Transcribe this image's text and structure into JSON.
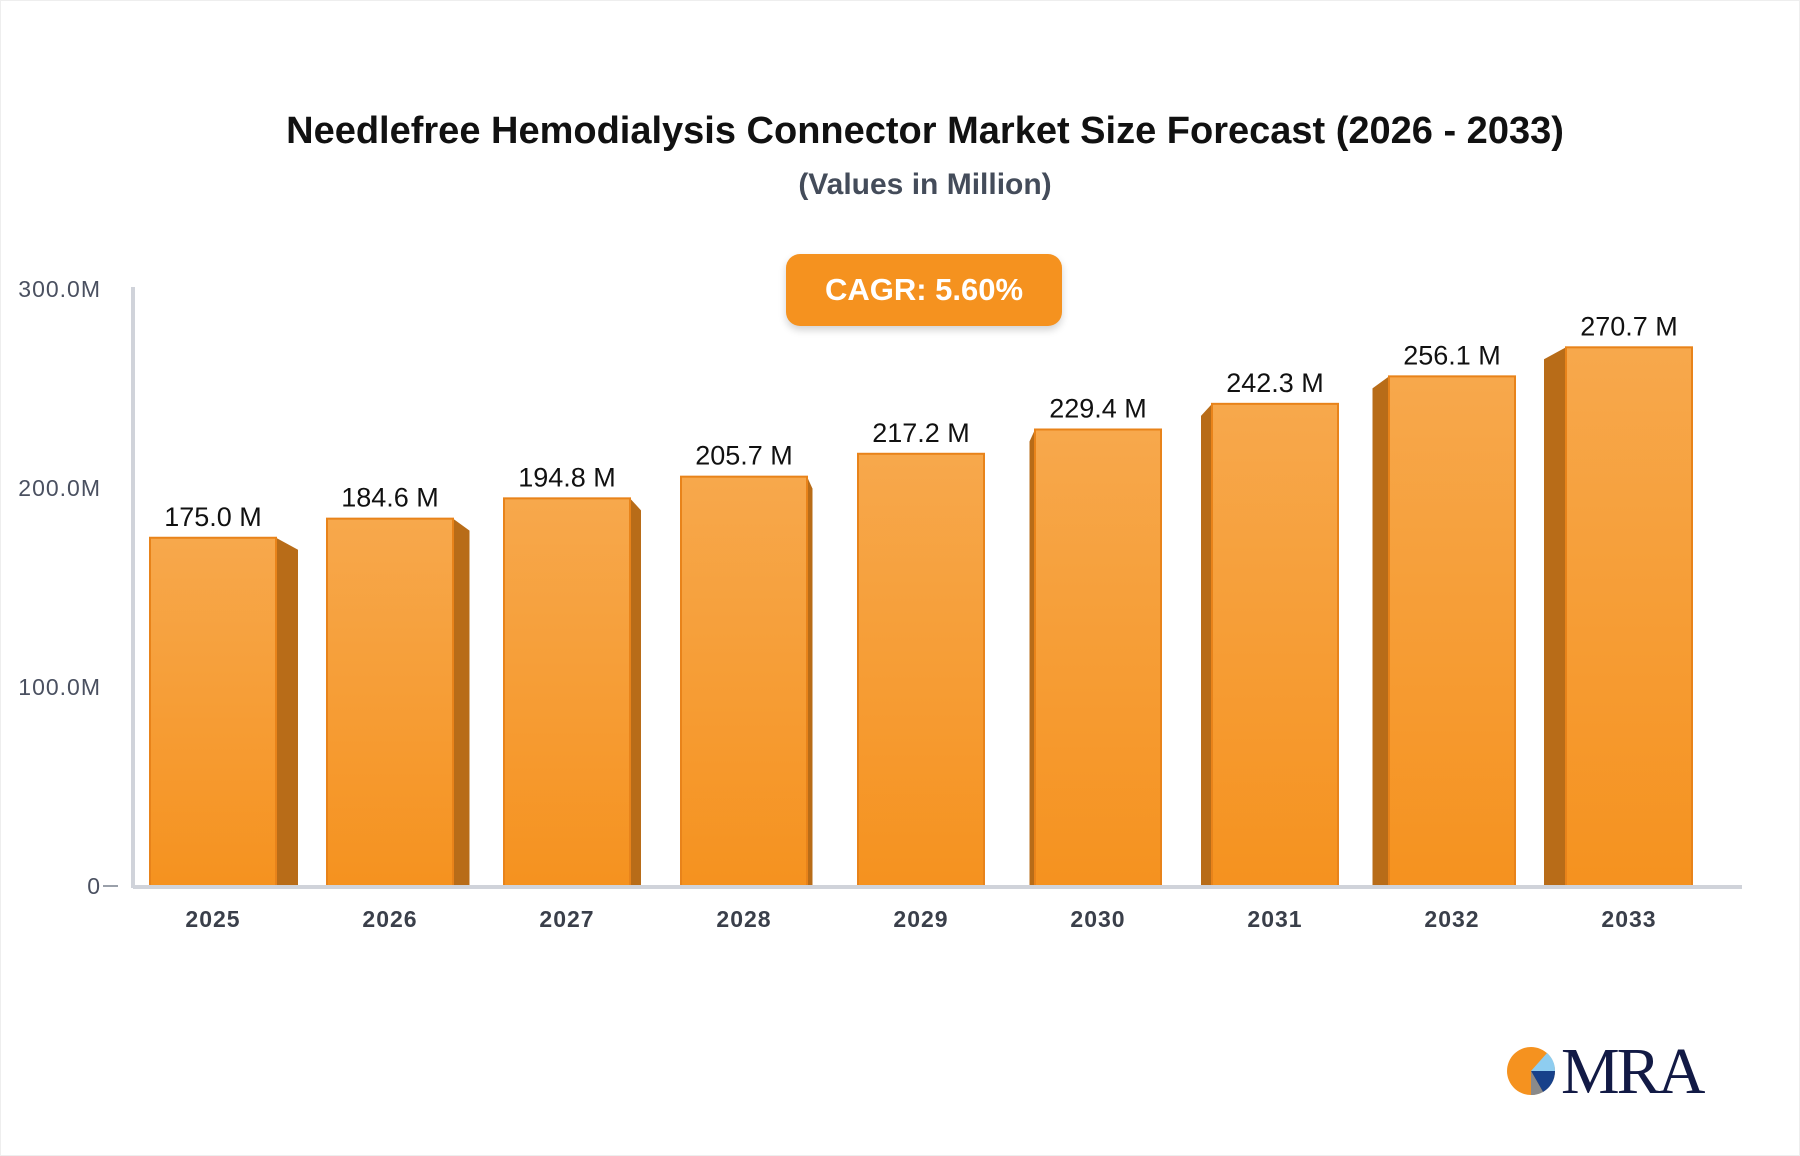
{
  "chart_data": {
    "type": "bar",
    "title": "Needlefree Hemodialysis Connector Market Size Forecast (2026 - 2033)",
    "subtitle": "(Values in Million)",
    "badge": "CAGR: 5.60%",
    "categories": [
      "2025",
      "2026",
      "2027",
      "2028",
      "2029",
      "2030",
      "2031",
      "2032",
      "2033"
    ],
    "values": [
      175.0,
      184.6,
      194.8,
      205.7,
      217.2,
      229.4,
      242.3,
      256.1,
      270.7
    ],
    "data_labels": [
      "175.0 M",
      "184.6 M",
      "194.8 M",
      "205.7 M",
      "217.2 M",
      "229.4 M",
      "242.3 M",
      "256.1 M",
      "270.7 M"
    ],
    "yticks": [
      0,
      100,
      200,
      300
    ],
    "ytick_labels": [
      "0",
      "100.0M",
      "200.0M",
      "300.0M"
    ],
    "ylim": [
      0,
      300
    ],
    "xlabel": "",
    "ylabel": "",
    "grid": false,
    "colors": {
      "bar": "#f5921f",
      "bar_top": "#f7a84c",
      "bar_side": "#b86c18",
      "badge": "#f5921f",
      "axis": "#d0d3da"
    }
  },
  "logo": {
    "text": "MRA"
  }
}
